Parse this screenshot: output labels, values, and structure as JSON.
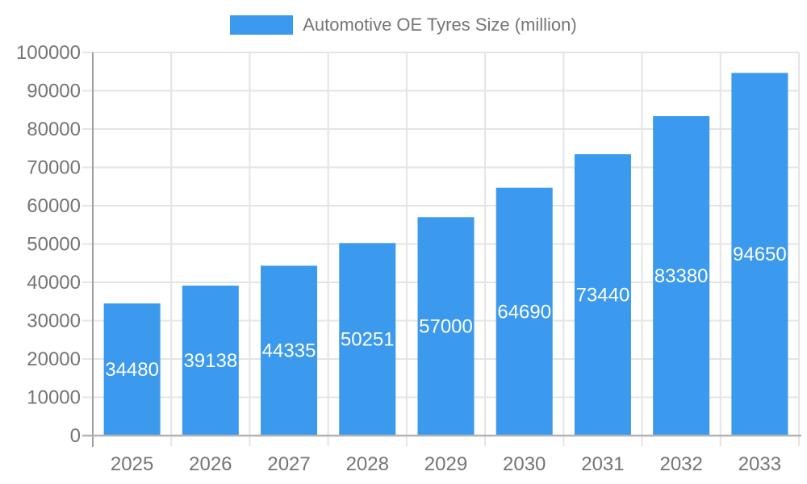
{
  "legend": {
    "label": "Automotive OE Tyres Size (million)"
  },
  "chart_data": {
    "type": "bar",
    "title": "Automotive OE Tyres Size (million)",
    "series": [
      {
        "name": "Automotive OE Tyres Size (million)",
        "values": [
          34480,
          39138,
          44335,
          50251,
          57000,
          64690,
          73440,
          83380,
          94650
        ]
      }
    ],
    "categories": [
      "2025",
      "2026",
      "2027",
      "2028",
      "2029",
      "2030",
      "2031",
      "2032",
      "2033"
    ],
    "bar_value_labels": [
      "34480",
      "39138",
      "44335",
      "50251",
      "57000",
      "64690",
      "73440",
      "83380",
      "94650"
    ],
    "xlabel": "",
    "ylabel": "",
    "ylim": [
      0,
      100000
    ],
    "y_tick_step": 10000,
    "y_tick_labels": [
      "0",
      "10000",
      "20000",
      "30000",
      "40000",
      "50000",
      "60000",
      "70000",
      "80000",
      "90000",
      "100000"
    ],
    "grid": "horizontal and vertical category boundaries",
    "legend_position": "top-center",
    "value_label_position": "centered inside bar",
    "colors": {
      "bar": "#3B99EE",
      "bar_label_text": "#FFFFFF",
      "axis_text": "#757575",
      "grid_line": "#E4E4E4",
      "axis_line_y": "#9E9E9E",
      "axis_line_x": "#B3B3B3",
      "background": "#FFFFFF"
    }
  }
}
